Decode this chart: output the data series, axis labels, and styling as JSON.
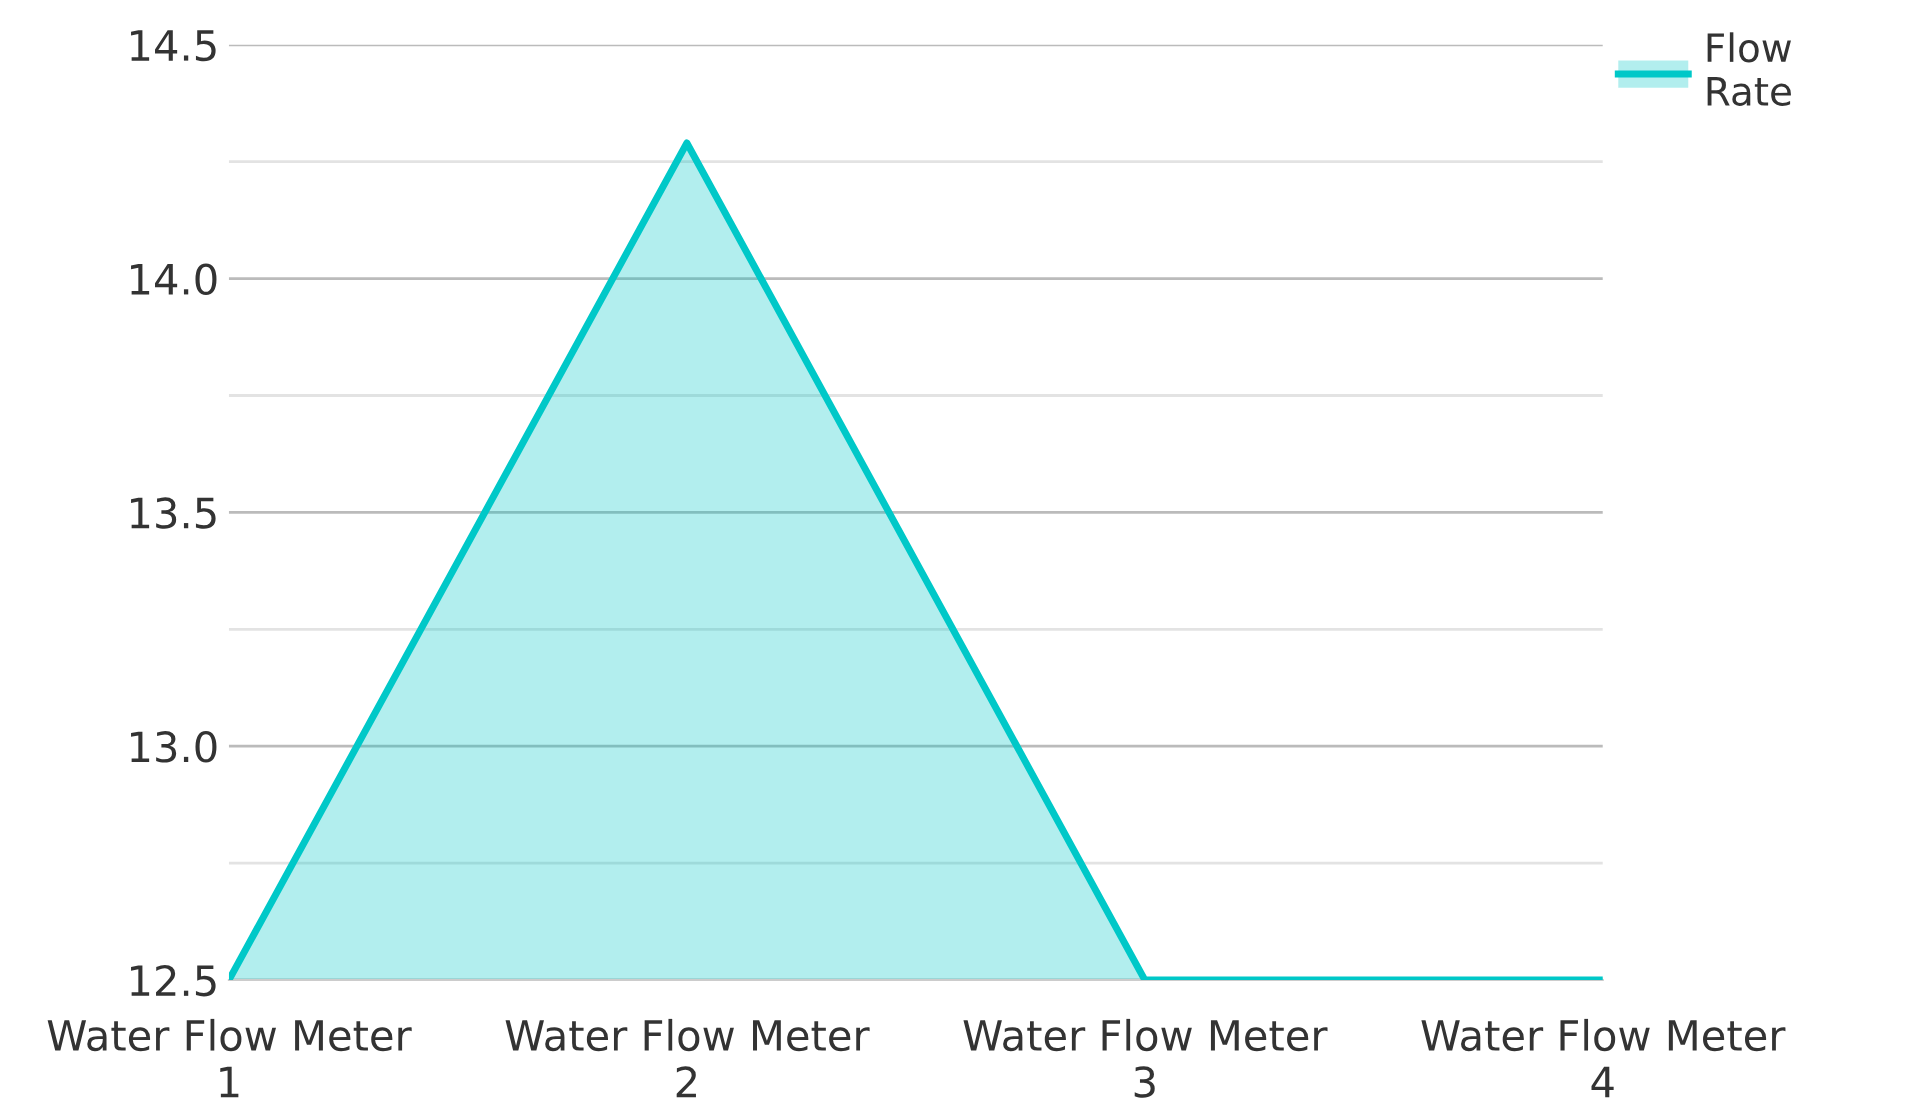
{
  "chart_data": {
    "type": "area",
    "categories": [
      "Water Flow Meter\n1",
      "Water Flow Meter\n2",
      "Water Flow Meter\n3",
      "Water Flow Meter\n4"
    ],
    "series": [
      {
        "name": "Flow\nRate",
        "color": "#00c8c8",
        "values": [
          12.5,
          14.29,
          12.5,
          12.5
        ]
      }
    ],
    "ylim": [
      12.5,
      14.5
    ],
    "yticks": [
      12.5,
      {
        "value": 12.75,
        "label": null
      },
      {
        "value": 13,
        "label": "13.0"
      },
      {
        "value": 13.25,
        "label": null
      },
      13.5,
      {
        "value": 13.75,
        "label": null
      },
      {
        "value": 14,
        "label": "14.0"
      },
      {
        "value": 14.25,
        "label": null
      },
      14.5
    ],
    "grid": "y",
    "legend": "top right"
  }
}
